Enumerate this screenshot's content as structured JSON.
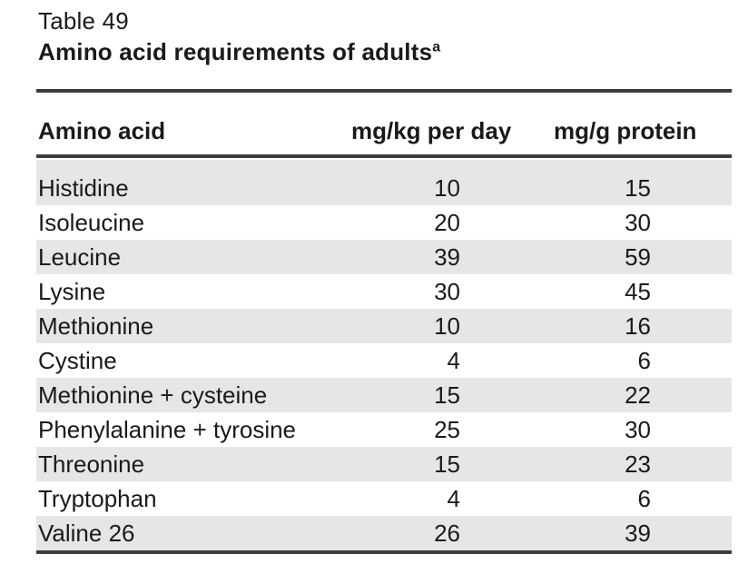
{
  "document": {
    "label": "Table 49",
    "title": "Amino acid requirements of adults",
    "title_superscript": "a"
  },
  "table": {
    "columns": [
      "Amino acid",
      "mg/kg per day",
      "mg/g protein"
    ],
    "rows": [
      {
        "amino_acid": "Histidine",
        "mg_kg_per_day": "10",
        "mg_g_protein": "15"
      },
      {
        "amino_acid": "Isoleucine",
        "mg_kg_per_day": "20",
        "mg_g_protein": "30"
      },
      {
        "amino_acid": "Leucine",
        "mg_kg_per_day": "39",
        "mg_g_protein": "59"
      },
      {
        "amino_acid": "Lysine",
        "mg_kg_per_day": "30",
        "mg_g_protein": "45"
      },
      {
        "amino_acid": "Methionine",
        "mg_kg_per_day": "10",
        "mg_g_protein": "16"
      },
      {
        "amino_acid": "Cystine",
        "mg_kg_per_day": "4",
        "mg_g_protein": "6"
      },
      {
        "amino_acid": "Methionine + cysteine",
        "mg_kg_per_day": "15",
        "mg_g_protein": "22"
      },
      {
        "amino_acid": "Phenylalanine + tyrosine",
        "mg_kg_per_day": "25",
        "mg_g_protein": "30"
      },
      {
        "amino_acid": "Threonine",
        "mg_kg_per_day": "15",
        "mg_g_protein": "23"
      },
      {
        "amino_acid": "Tryptophan",
        "mg_kg_per_day": "4",
        "mg_g_protein": "6"
      },
      {
        "amino_acid": "Valine 26",
        "mg_kg_per_day": "26",
        "mg_g_protein": "39"
      }
    ]
  },
  "colors": {
    "row_shade": "#e6e6e6",
    "rule": "#3d3d3d",
    "text": "#1a1a1a",
    "background": "#ffffff"
  }
}
